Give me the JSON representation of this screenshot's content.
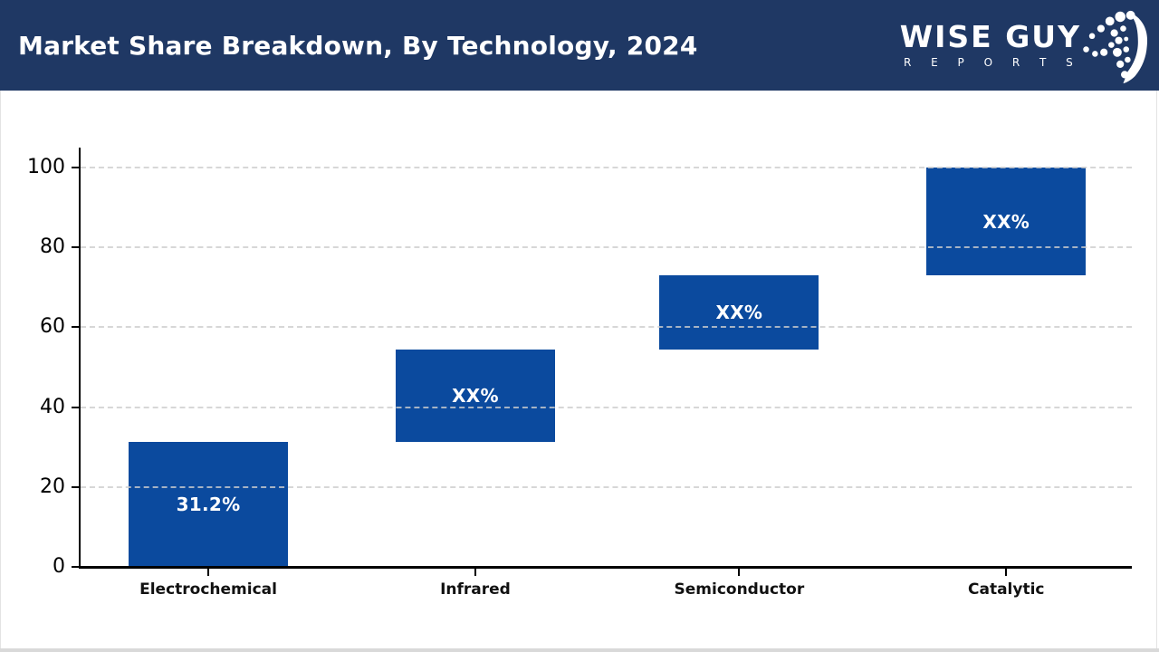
{
  "header": {
    "title": "Market Share Breakdown, By Technology, 2024",
    "bg_color": "#1f3864",
    "logo": {
      "line1": "WISE GUY",
      "line2": "R E P O R T S"
    }
  },
  "watermark": {
    "line1": "WISE GUY",
    "line2": "R E P O R T S"
  },
  "chart_data": {
    "type": "bar",
    "subtype": "waterfall",
    "title": "Market Share Breakdown, By Technology, 2024",
    "categories": [
      "Electrochemical",
      "Infrared",
      "Semiconductor",
      "Catalytic"
    ],
    "segments": [
      {
        "category": "Electrochemical",
        "start": 0,
        "end": 31.2,
        "label": "31.2%"
      },
      {
        "category": "Infrared",
        "start": 31.2,
        "end": 54.5,
        "label": "XX%"
      },
      {
        "category": "Semiconductor",
        "start": 54.5,
        "end": 73,
        "label": "XX%"
      },
      {
        "category": "Catalytic",
        "start": 73,
        "end": 100,
        "label": "XX%"
      }
    ],
    "xlabel": "",
    "ylabel": "",
    "ylim": [
      0,
      105
    ],
    "yticks": [
      0,
      20,
      40,
      60,
      80,
      100
    ],
    "grid": "horizontal dashed",
    "legend": "none",
    "bar_color": "#0b4a9e",
    "bar_label_color": "#ffffff",
    "gridline_color": "#d9d9d9",
    "axis_color": "#000000"
  }
}
